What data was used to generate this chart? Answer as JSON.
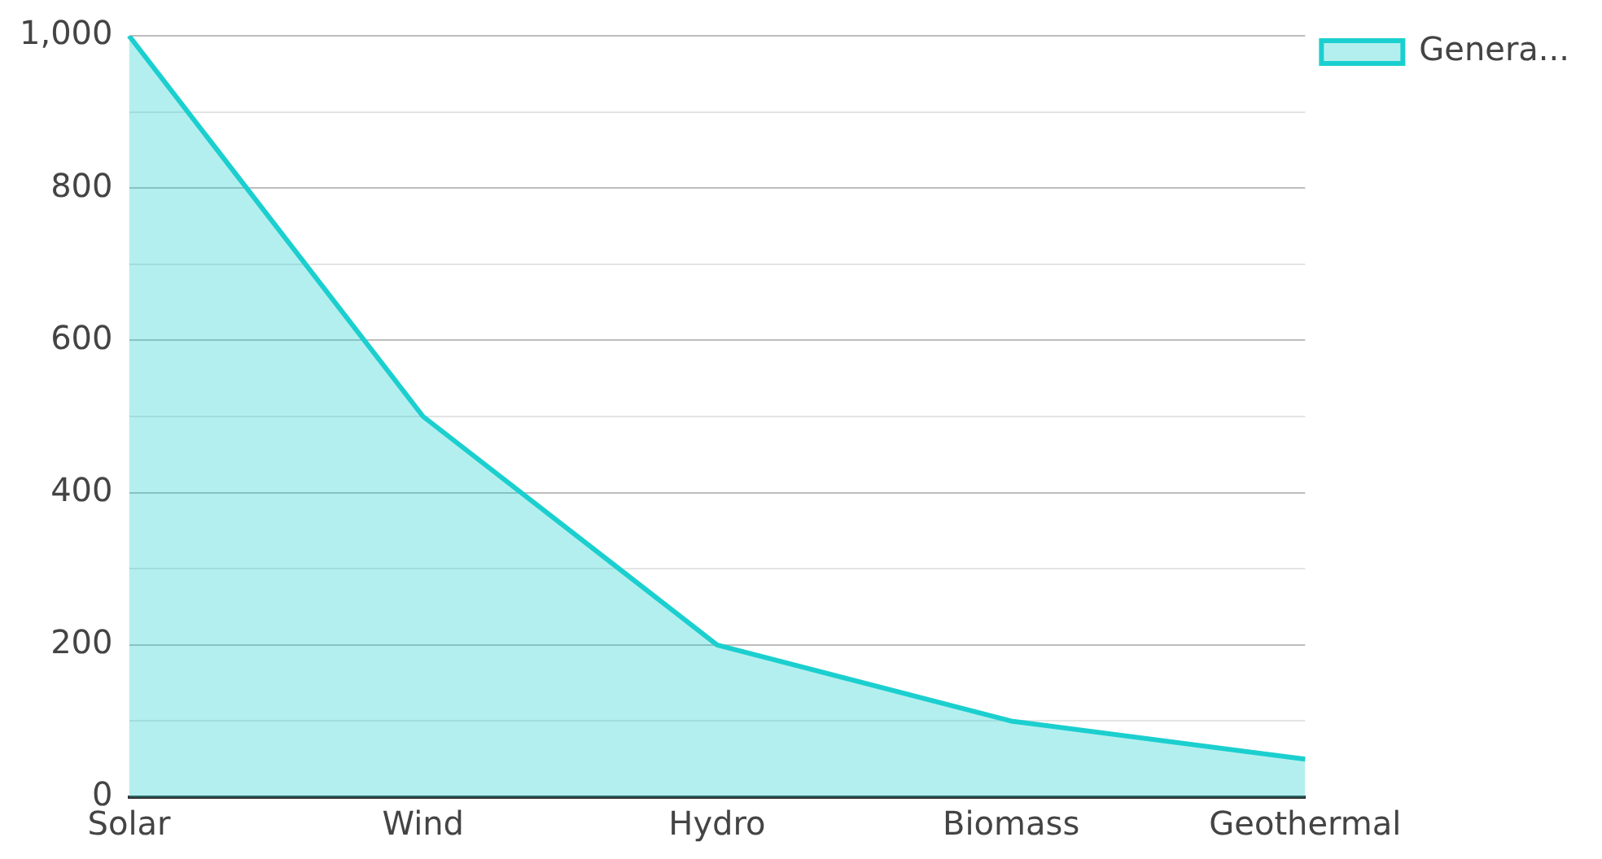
{
  "chart_data": {
    "type": "area",
    "categories": [
      "Solar",
      "Wind",
      "Hydro",
      "Biomass",
      "Geothermal"
    ],
    "series": [
      {
        "name": "Genera...",
        "color": "#1ccfcf",
        "values": [
          1000,
          500,
          200,
          100,
          50
        ]
      }
    ],
    "ylim": [
      0,
      1000
    ],
    "yticks": [
      0,
      {
        "value": 100,
        "label": null
      },
      200,
      {
        "value": 300,
        "label": null
      },
      400,
      {
        "value": 500,
        "label": null
      },
      600,
      {
        "value": 700,
        "label": null
      },
      800,
      {
        "value": 900,
        "label": null
      },
      {
        "value": 1000,
        "label": "1,000"
      }
    ],
    "grid": "y",
    "legend": "top right"
  }
}
